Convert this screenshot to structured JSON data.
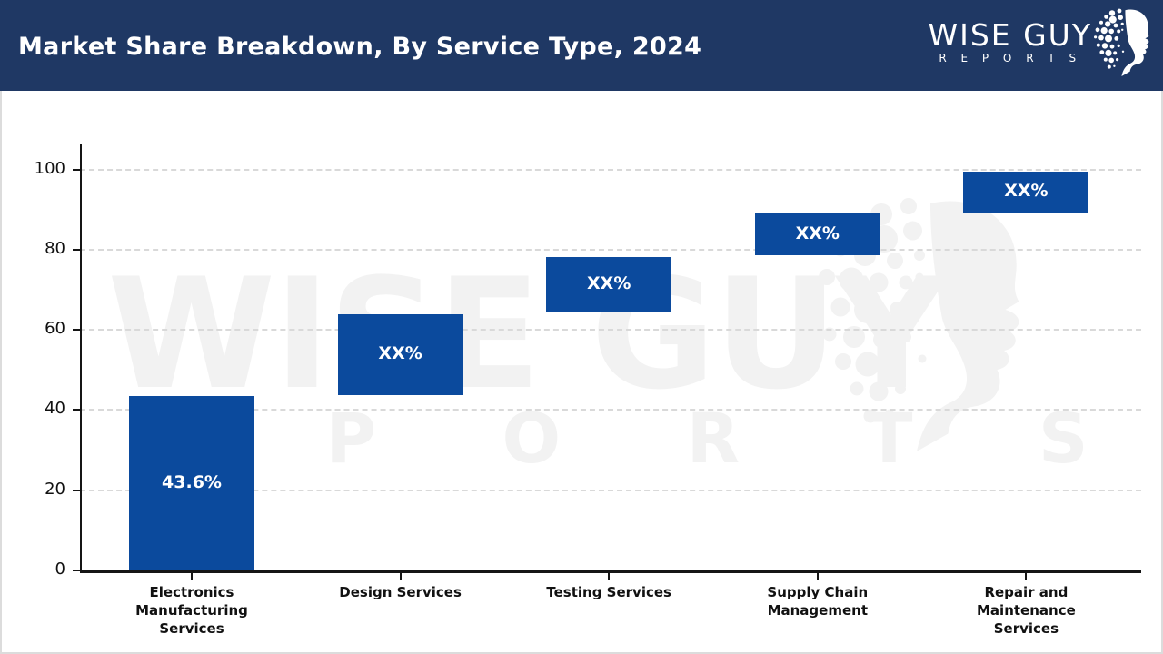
{
  "header": {
    "title": "Market Share Breakdown, By Service Type, 2024",
    "logo_line1": "WISE GUY",
    "logo_line2": "R E P O R T S"
  },
  "watermark": {
    "line1": "WISE GUY",
    "line2": "E P O R T S"
  },
  "chart_data": {
    "type": "bar",
    "subtype": "waterfall",
    "title": "Market Share Breakdown, By Service Type, 2024",
    "unit": "percent",
    "categories": [
      [
        "Electronics",
        "Manufacturing",
        "Services"
      ],
      [
        "Design Services"
      ],
      [
        "Testing Services"
      ],
      [
        "Supply Chain",
        "Management"
      ],
      [
        "Repair and",
        "Maintenance",
        "Services"
      ]
    ],
    "bars": [
      {
        "category": "Electronics Manufacturing Services",
        "start": 0,
        "end": 43.6,
        "label": "43.6%"
      },
      {
        "category": "Design Services",
        "start": 43.8,
        "end": 64,
        "label": "XX%"
      },
      {
        "category": "Testing Services",
        "start": 64.4,
        "end": 78.2,
        "label": "XX%"
      },
      {
        "category": "Supply Chain Management",
        "start": 78.7,
        "end": 89.1,
        "label": "XX%"
      },
      {
        "category": "Repair and Maintenance Services",
        "start": 89.3,
        "end": 99.5,
        "label": "XX%"
      }
    ],
    "yticks": [
      0,
      20,
      40,
      60,
      80,
      100
    ],
    "ylim": [
      0,
      106.5
    ],
    "grid": "horizontal-dashed",
    "legend": "none",
    "colors": {
      "bar": "#0b4a9d",
      "bar_label": "#ffffff",
      "header_bg": "#1f3864",
      "axis": "#151515",
      "grid": "#d9d9d9",
      "watermark": "#f2f2f2"
    }
  }
}
